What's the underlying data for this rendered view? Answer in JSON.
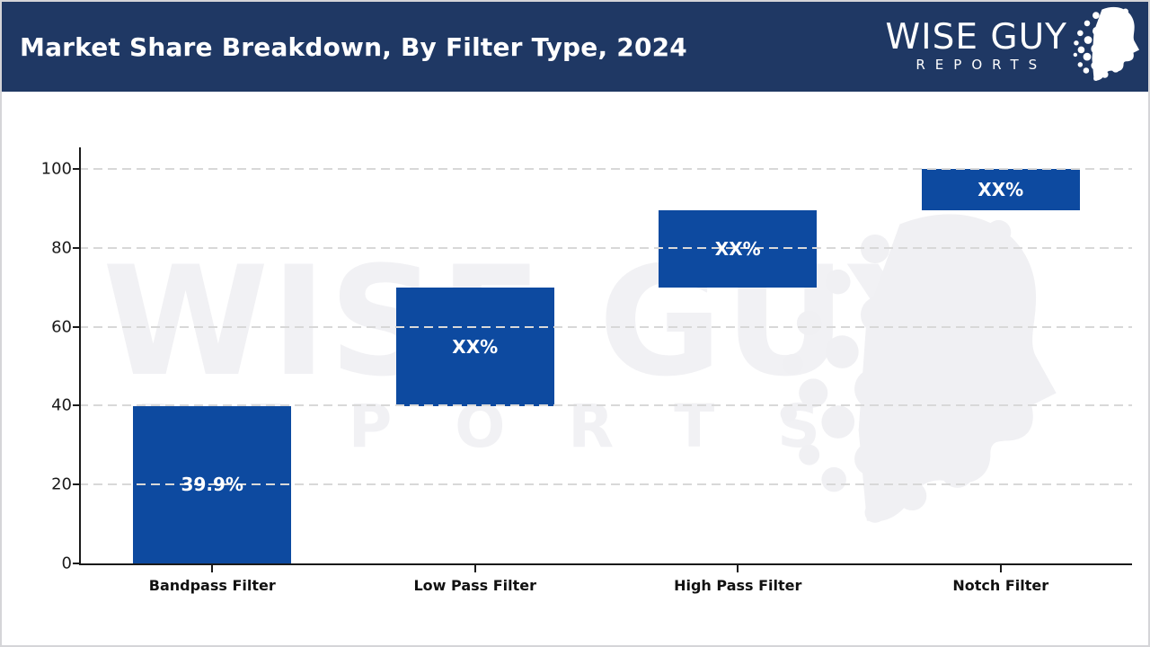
{
  "header": {
    "title": "Market Share Breakdown, By Filter Type, 2024",
    "logo": {
      "name": "WISE GUY",
      "sub": "REPORTS"
    }
  },
  "watermark": {
    "line1": "WISE GUY",
    "line2": "REPORTS"
  },
  "icons": {
    "logo_head": "dotted-head-profile",
    "watermark_head": "dotted-head-profile"
  },
  "colors": {
    "header_bg": "#1f3864",
    "bar": "#0d4aa0",
    "grid": "#d8d8d8",
    "axis": "#1a1a1a",
    "bar_label": "#ffffff",
    "watermark": "#f1f1f4"
  },
  "chart_data": {
    "type": "bar",
    "subtype": "waterfall",
    "title": "Market Share Breakdown, By Filter Type, 2024",
    "xlabel": "",
    "ylabel": "",
    "categories": [
      "Bandpass Filter",
      "Low Pass Filter",
      "High Pass Filter",
      "Notch Filter"
    ],
    "segments": [
      {
        "category": "Bandpass Filter",
        "start": 0,
        "end": 39.9,
        "label": "39.9%"
      },
      {
        "category": "Low Pass Filter",
        "start": 39.9,
        "end": 69.9,
        "label": "XX%"
      },
      {
        "category": "High Pass Filter",
        "start": 69.9,
        "end": 89.5,
        "label": "XX%"
      },
      {
        "category": "Notch Filter",
        "start": 89.5,
        "end": 100,
        "label": "XX%"
      }
    ],
    "ylim": [
      0,
      105
    ],
    "yticks": [
      0,
      20,
      40,
      60,
      80,
      100
    ],
    "grid": "horizontal-dashed",
    "legend": "none",
    "bar_color": "#0d4aa0"
  }
}
